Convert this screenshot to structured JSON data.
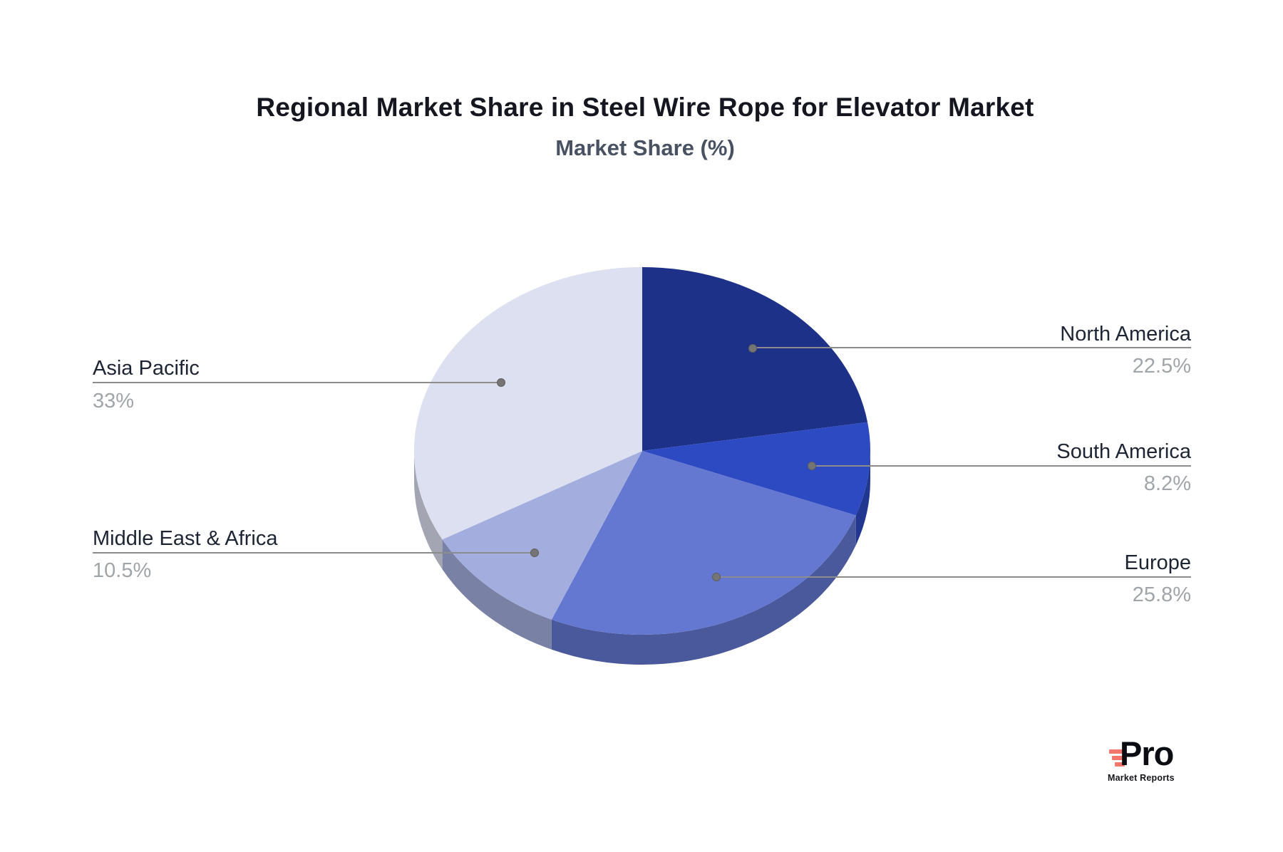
{
  "title": "Regional Market Share in Steel Wire Rope for Elevator Market",
  "subtitle": "Market Share (%)",
  "logo": {
    "name": "Pro",
    "tagline": "Market Reports",
    "bar_color": "#f1776c"
  },
  "style": {
    "label_color": "#1d2433",
    "percent_color": "#a1a4a8",
    "leader_line_color": "#8c8c8c",
    "background": "#ffffff"
  },
  "chart_data": {
    "type": "pie",
    "title": "Regional Market Share in Steel Wire Rope for Elevator Market",
    "subtitle": "Market Share (%)",
    "unit": "%",
    "effect": "3d",
    "start_angle_deg": 0,
    "direction": "clockwise",
    "legend_position": "callout-labels",
    "slices": [
      {
        "label": "North America",
        "value": 22.5,
        "display": "22.5%",
        "color": "#1e3189",
        "callout_side": "right"
      },
      {
        "label": "South America",
        "value": 8.2,
        "display": "8.2%",
        "color": "#2e4ac3",
        "callout_side": "right"
      },
      {
        "label": "Europe",
        "value": 25.8,
        "display": "25.8%",
        "color": "#6478d1",
        "callout_side": "right"
      },
      {
        "label": "Middle East & Africa",
        "value": 10.5,
        "display": "10.5%",
        "color": "#a3aedf",
        "callout_side": "left"
      },
      {
        "label": "Asia Pacific",
        "value": 33,
        "display": "33%",
        "color": "#dce0f0",
        "callout_side": "left"
      }
    ]
  }
}
